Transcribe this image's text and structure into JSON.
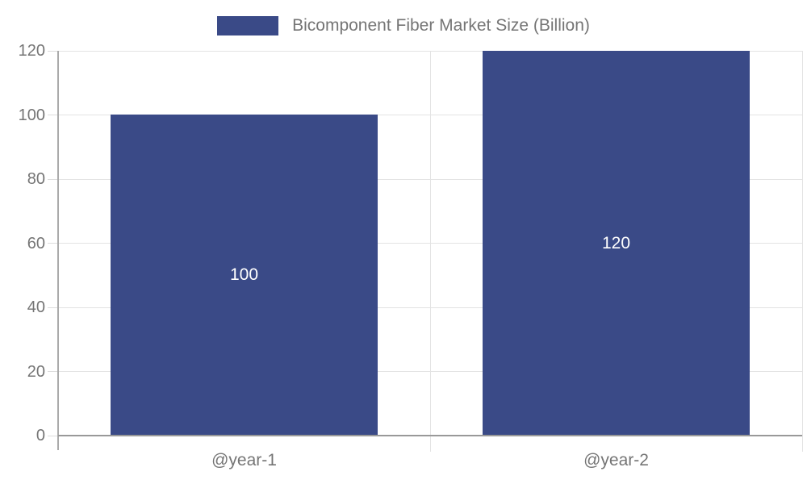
{
  "legend": {
    "label": "Bicomponent Fiber Market Size (Billion)"
  },
  "chart_data": {
    "type": "bar",
    "title": "Bicomponent Fiber Market Size (Billion)",
    "categories": [
      "@year-1",
      "@year-2"
    ],
    "series": [
      {
        "name": "Bicomponent Fiber Market Size (Billion)",
        "values": [
          100,
          120
        ]
      }
    ],
    "value_labels": [
      "100",
      "120"
    ],
    "ylabel": "",
    "xlabel": "",
    "ylim": [
      0,
      120
    ],
    "yticks": [
      0,
      20,
      40,
      60,
      80,
      100,
      120
    ],
    "grid": true,
    "legend_position": "top",
    "colors": {
      "bar": "#3a4a87",
      "value_label": "#ffffff",
      "axis_text": "#757575",
      "gridline": "#e3e3e3",
      "tick": "#dcdcdc",
      "y_axis_line": "#aaaaaa",
      "x_axis_line": "#999999"
    }
  }
}
